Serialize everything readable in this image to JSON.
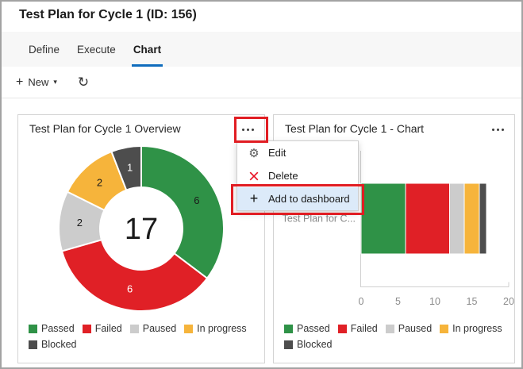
{
  "header": {
    "title": "Test Plan for Cycle 1 (ID: 156)"
  },
  "tabs": [
    {
      "label": "Define",
      "active": false
    },
    {
      "label": "Execute",
      "active": false
    },
    {
      "label": "Chart",
      "active": true
    }
  ],
  "toolbar": {
    "new_label": "New"
  },
  "cards": [
    {
      "title": "Test Plan for Cycle 1 Overview"
    },
    {
      "title": "Test Plan for Cycle 1 - Chart"
    }
  ],
  "context_menu": {
    "items": [
      {
        "icon": "gear-icon",
        "label": "Edit",
        "highlighted": false
      },
      {
        "icon": "x-icon",
        "label": "Delete",
        "highlighted": false
      },
      {
        "icon": "plus-icon",
        "label": "Add to dashboard",
        "highlighted": true
      }
    ]
  },
  "colors": {
    "accent_blue": "#0F6CBD",
    "annotation_red": "#E11D23",
    "passed": "#2F9247",
    "failed": "#E02026",
    "paused": "#CCCCCC",
    "in_progress": "#F6B43B",
    "blocked": "#4D4D4D"
  },
  "chart_data": [
    {
      "type": "pie",
      "subtype": "donut",
      "title": "Test Plan for Cycle 1 Overview",
      "center_total": "17",
      "categories": [
        "Passed",
        "Failed",
        "Paused",
        "In progress",
        "Blocked"
      ],
      "values": [
        6,
        6,
        2,
        2,
        1
      ],
      "colors": [
        "#2F9247",
        "#E02026",
        "#CCCCCC",
        "#F6B43B",
        "#4D4D4D"
      ],
      "slice_label_colors": [
        "#1A1A1A",
        "#FFFFFF",
        "#1A1A1A",
        "#1A1A1A",
        "#FFFFFF"
      ],
      "legend_position": "bottom"
    },
    {
      "type": "bar",
      "subtype": "horizontal-stacked",
      "title": "Test Plan for Cycle 1 - Chart",
      "category_label": "Test Plan for C...",
      "categories": [
        "Passed",
        "Failed",
        "Paused",
        "In progress",
        "Blocked"
      ],
      "values": [
        6,
        6,
        2,
        2,
        1
      ],
      "colors": [
        "#2F9247",
        "#E02026",
        "#CCCCCC",
        "#F6B43B",
        "#4D4D4D"
      ],
      "xlim": [
        0,
        20
      ],
      "xticks": [
        0,
        5,
        10,
        15,
        20
      ],
      "legend_position": "bottom"
    }
  ]
}
